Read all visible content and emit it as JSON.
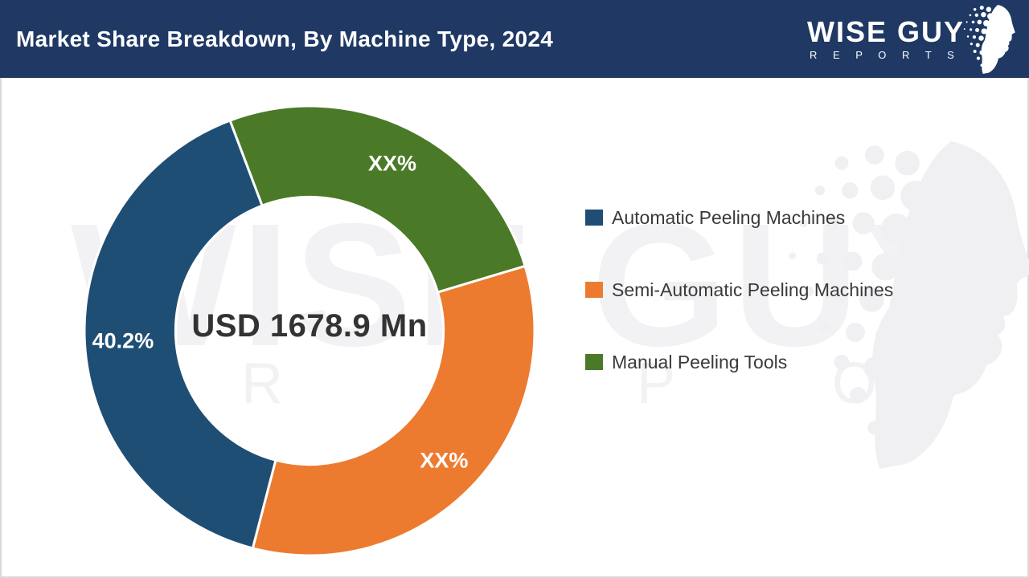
{
  "header": {
    "title": "Market Share Breakdown, By Machine Type, 2024",
    "logo": {
      "line1": "WISE GUY",
      "line2": "R E P O R T S"
    }
  },
  "watermark": {
    "line1": "WISE GUY",
    "line2": "R E P O R T S"
  },
  "chart_data": {
    "type": "pie",
    "subtype": "donut",
    "title": "Market Share Breakdown, By Machine Type, 2024",
    "center_label": "USD 1678.9 Mn",
    "start_angle_deg": 194.6,
    "inner_radius_fraction": 0.595,
    "label_radius_fraction": 0.83,
    "legend_position": "right",
    "draw_order": [
      0,
      2,
      1
    ],
    "series": [
      {
        "name": "Automatic Peeling Machines",
        "value": 40.2,
        "label": "40.2%",
        "color": "#1f4e75"
      },
      {
        "name": "Semi-Automatic Peeling Machines",
        "value": 33.7,
        "label": "XX%",
        "color": "#ec7b30"
      },
      {
        "name": "Manual Peeling Tools",
        "value": 26.1,
        "label": "XX%",
        "color": "#4a7a28"
      }
    ]
  },
  "legend": {
    "items": [
      {
        "label": "Automatic Peeling Machines",
        "color": "#1f4e75"
      },
      {
        "label": "Semi-Automatic Peeling Machines",
        "color": "#ec7b30"
      },
      {
        "label": "Manual Peeling Tools",
        "color": "#4a7a28"
      }
    ]
  },
  "colors": {
    "header_bg": "#1f3864",
    "watermark": "#f2f2f4",
    "border": "#d9d9d9",
    "center_text": "#333333"
  }
}
